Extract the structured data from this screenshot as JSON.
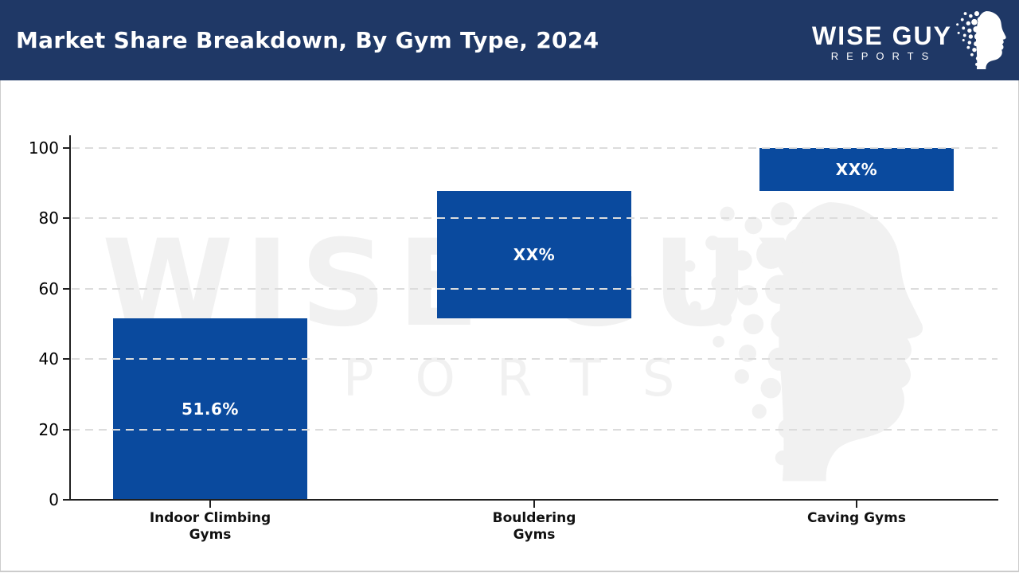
{
  "header": {
    "title": "Market Share Breakdown, By Gym Type, 2024",
    "logo_line1": "WISE GUY",
    "logo_line2": "REPORTS"
  },
  "watermark": {
    "line1": "WISE GUY",
    "line2": "REPORTS"
  },
  "colors": {
    "header_bg": "#1F3866",
    "bar_fill": "#0A4A9E",
    "bar_label_text": "#FFFFFF",
    "grid": "#DCDCDC",
    "axis": "#1F1F1F",
    "watermark": "#F1F1F1",
    "frame_border": "#CCCCCC"
  },
  "chart_data": {
    "type": "bar",
    "subtype": "floating-segment (waterfall-style market share)",
    "title": "Market Share Breakdown, By Gym Type, 2024",
    "categories": [
      "Indoor Climbing Gyms",
      "Bouldering Gyms",
      "Caving Gyms"
    ],
    "series": [
      {
        "name": "Market Share (%)",
        "segments": [
          {
            "category": "Indoor Climbing Gyms",
            "start": 0,
            "end": 51.6,
            "label": "51.6%"
          },
          {
            "category": "Bouldering Gyms",
            "start": 51.6,
            "end": 87.7,
            "label": "XX%"
          },
          {
            "category": "Caving Gyms",
            "start": 87.7,
            "end": 100,
            "label": "XX%"
          }
        ]
      }
    ],
    "xlabel": "",
    "ylabel": "",
    "ylim": [
      0,
      100
    ],
    "yticks": [
      0,
      20,
      40,
      60,
      80,
      100
    ],
    "grid": true,
    "grid_style": "dashed",
    "legend": "none"
  }
}
